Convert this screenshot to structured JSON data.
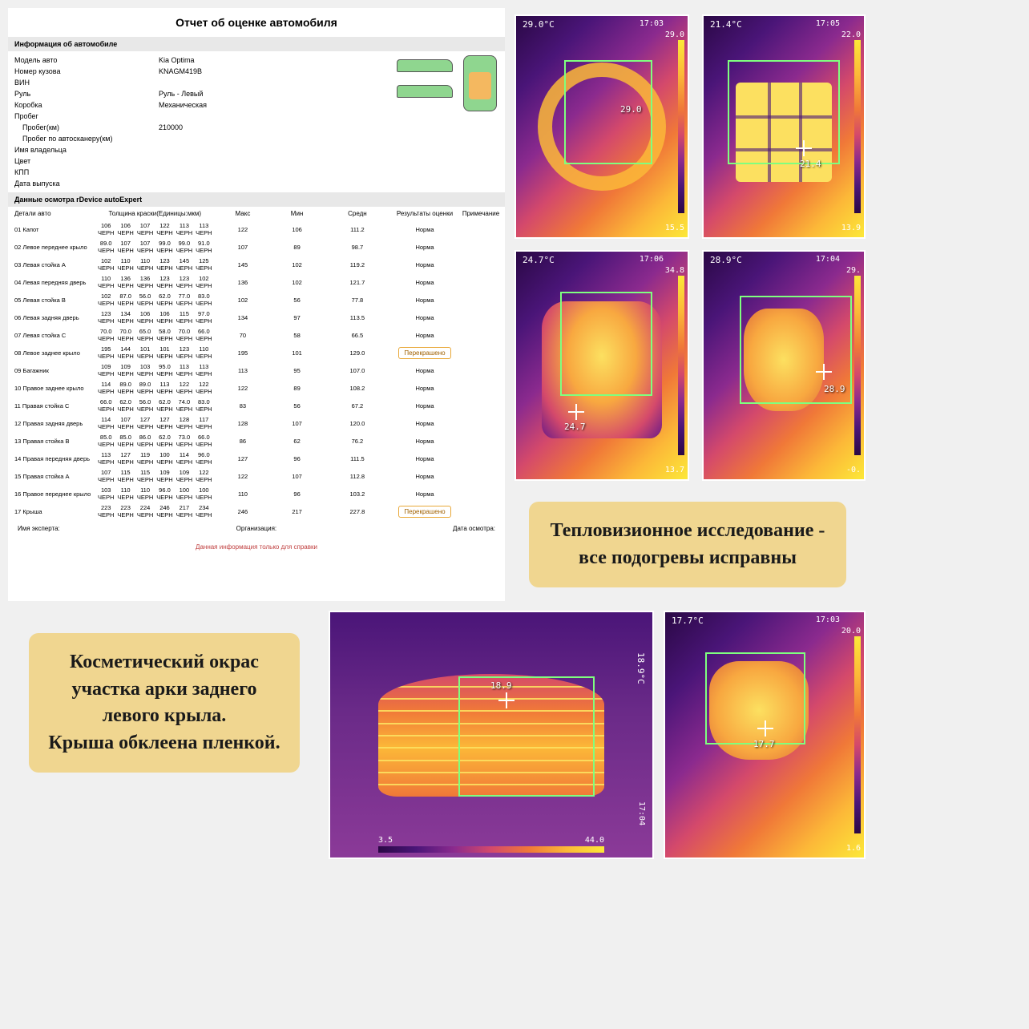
{
  "report": {
    "title": "Отчет об оценке автомобиля",
    "section_info": "Информация об автомобиле",
    "section_data": "Данные осмотра rDevice autoExpert",
    "info": {
      "model_label": "Модель авто",
      "model_value": "Kia Optima",
      "body_label": "Номер кузова",
      "body_value": "KNAGM419B",
      "vin_label": "ВИН",
      "vin_value": "",
      "wheel_label": "Руль",
      "wheel_value": "Руль - Левый",
      "gearbox_label": "Коробка",
      "gearbox_value": "Механическая",
      "mileage_label": "Пробег",
      "mileage_value": "",
      "mileage_km_label": "Пробег(км)",
      "mileage_km_value": "210000",
      "mileage_scan_label": "Пробег по автосканеру(км)",
      "mileage_scan_value": "",
      "owner_label": "Имя владельца",
      "color_label": "Цвет",
      "kpp_label": "КПП",
      "year_label": "Дата выпуска"
    },
    "columns": {
      "part": "Детали авто",
      "thickness": "Толщина краски(Единицы:мкм)",
      "max": "Макс",
      "min": "Мин",
      "avg": "Средн",
      "result": "Результаты оценки",
      "note": "Примечание"
    },
    "rows": [
      {
        "n": "01",
        "name": "Капот",
        "m": [
          "106",
          "106",
          "107",
          "122",
          "113",
          "113"
        ],
        "max": "122",
        "min": "106",
        "avg": "111.2",
        "res": "Норма",
        "hl": false
      },
      {
        "n": "02",
        "name": "Левое переднее крыло",
        "m": [
          "89.0",
          "107",
          "107",
          "99.0",
          "99.0",
          "91.0"
        ],
        "max": "107",
        "min": "89",
        "avg": "98.7",
        "res": "Норма",
        "hl": false
      },
      {
        "n": "03",
        "name": "Левая стойка A",
        "m": [
          "102",
          "110",
          "110",
          "123",
          "145",
          "125"
        ],
        "max": "145",
        "min": "102",
        "avg": "119.2",
        "res": "Норма",
        "hl": false
      },
      {
        "n": "04",
        "name": "Левая передняя дверь",
        "m": [
          "110",
          "136",
          "136",
          "123",
          "123",
          "102"
        ],
        "max": "136",
        "min": "102",
        "avg": "121.7",
        "res": "Норма",
        "hl": false
      },
      {
        "n": "05",
        "name": "Левая стойка B",
        "m": [
          "102",
          "87.0",
          "56.0",
          "62.0",
          "77.0",
          "83.0"
        ],
        "max": "102",
        "min": "56",
        "avg": "77.8",
        "res": "Норма",
        "hl": false
      },
      {
        "n": "06",
        "name": "Левая задняя дверь",
        "m": [
          "123",
          "134",
          "106",
          "106",
          "115",
          "97.0"
        ],
        "max": "134",
        "min": "97",
        "avg": "113.5",
        "res": "Норма",
        "hl": false
      },
      {
        "n": "07",
        "name": "Левая стойка C",
        "m": [
          "70.0",
          "70.0",
          "65.0",
          "58.0",
          "70.0",
          "66.0"
        ],
        "max": "70",
        "min": "58",
        "avg": "66.5",
        "res": "Норма",
        "hl": false
      },
      {
        "n": "08",
        "name": "Левое заднее крыло",
        "m": [
          "195",
          "144",
          "101",
          "101",
          "123",
          "110"
        ],
        "max": "195",
        "min": "101",
        "avg": "129.0",
        "res": "Перекрашено",
        "hl": true
      },
      {
        "n": "09",
        "name": "Багажник",
        "m": [
          "109",
          "109",
          "103",
          "95.0",
          "113",
          "113"
        ],
        "max": "113",
        "min": "95",
        "avg": "107.0",
        "res": "Норма",
        "hl": false
      },
      {
        "n": "10",
        "name": "Правое заднее крыло",
        "m": [
          "114",
          "89.0",
          "89.0",
          "113",
          "122",
          "122"
        ],
        "max": "122",
        "min": "89",
        "avg": "108.2",
        "res": "Норма",
        "hl": false
      },
      {
        "n": "11",
        "name": "Правая стойка C",
        "m": [
          "66.0",
          "62.0",
          "56.0",
          "62.0",
          "74.0",
          "83.0"
        ],
        "max": "83",
        "min": "56",
        "avg": "67.2",
        "res": "Норма",
        "hl": false
      },
      {
        "n": "12",
        "name": "Правая задняя дверь",
        "m": [
          "114",
          "107",
          "127",
          "127",
          "128",
          "117"
        ],
        "max": "128",
        "min": "107",
        "avg": "120.0",
        "res": "Норма",
        "hl": false
      },
      {
        "n": "13",
        "name": "Правая стойка B",
        "m": [
          "85.0",
          "85.0",
          "86.0",
          "62.0",
          "73.0",
          "66.0"
        ],
        "max": "86",
        "min": "62",
        "avg": "76.2",
        "res": "Норма",
        "hl": false
      },
      {
        "n": "14",
        "name": "Правая передняя дверь",
        "m": [
          "113",
          "127",
          "119",
          "100",
          "114",
          "96.0"
        ],
        "max": "127",
        "min": "96",
        "avg": "111.5",
        "res": "Норма",
        "hl": false
      },
      {
        "n": "15",
        "name": "Правая стойка A",
        "m": [
          "107",
          "115",
          "115",
          "109",
          "109",
          "122"
        ],
        "max": "122",
        "min": "107",
        "avg": "112.8",
        "res": "Норма",
        "hl": false
      },
      {
        "n": "16",
        "name": "Правое переднее крыло",
        "m": [
          "103",
          "110",
          "110",
          "96.0",
          "100",
          "100"
        ],
        "max": "110",
        "min": "96",
        "avg": "103.2",
        "res": "Норма",
        "hl": false
      },
      {
        "n": "17",
        "name": "Крыша",
        "m": [
          "223",
          "223",
          "224",
          "246",
          "217",
          "234"
        ],
        "max": "246",
        "min": "217",
        "avg": "227.8",
        "res": "Перекрашено",
        "hl": true
      }
    ],
    "unit": "ЧЕРН",
    "footer": {
      "expert": "Имя эксперта:",
      "org": "Организация:",
      "date": "Дата осмотра:"
    },
    "disclaimer": "Данная информация только для справки"
  },
  "thermals": {
    "t1": {
      "temp": "29.0°C",
      "time": "17:03",
      "max": "29.0",
      "min": "15.5",
      "read": "29.0"
    },
    "t2": {
      "temp": "21.4°C",
      "time": "17:05",
      "max": "22.0",
      "min": "13.9",
      "read": "21.4"
    },
    "t3": {
      "temp": "24.7°C",
      "time": "17:06",
      "max": "34.8",
      "min": "13.7",
      "read": "24.7"
    },
    "t4": {
      "temp": "28.9°C",
      "time": "17:04",
      "max": "29.",
      "min": "-0.",
      "read": "28.9"
    },
    "t5": {
      "temp": "18.9°C",
      "time": "17:04",
      "max": "44.0",
      "min": "3.5",
      "read": "18.9"
    },
    "t6": {
      "temp": "17.7°C",
      "time": "17:03",
      "max": "20.0",
      "min": "1.6",
      "read": "17.7"
    }
  },
  "callouts": {
    "c1": "Тепловизионное исследование - все подогревы исправны",
    "c2": "Косметический окрас участка арки заднего левого крыла.\nКрыша обклеена пленкой."
  },
  "colors": {
    "callout_bg": "#f0d690",
    "highlight_border": "#e8a838",
    "green_box": "#7fff7f"
  }
}
